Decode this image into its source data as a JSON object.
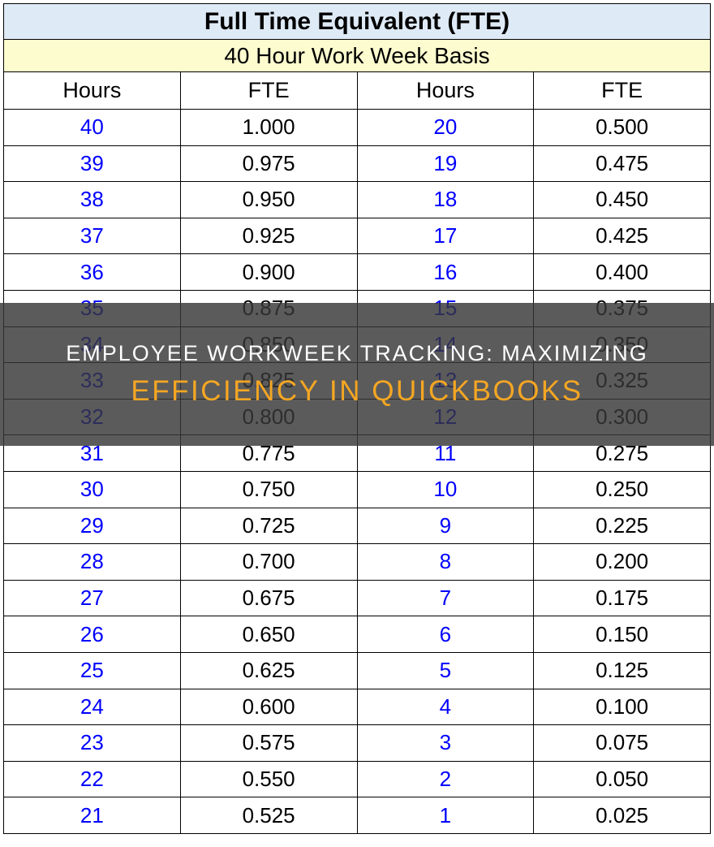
{
  "table": {
    "title": "Full Time Equivalent (FTE)",
    "subtitle": "40 Hour Work Week Basis",
    "columns": [
      "Hours",
      "FTE",
      "Hours",
      "FTE"
    ],
    "title_bg": "#deeaf6",
    "subtitle_bg": "#fdfccf",
    "hours_color": "#0000ff",
    "fte_color": "#000000",
    "border_color": "#000000",
    "rows": [
      [
        "40",
        "1.000",
        "20",
        "0.500"
      ],
      [
        "39",
        "0.975",
        "19",
        "0.475"
      ],
      [
        "38",
        "0.950",
        "18",
        "0.450"
      ],
      [
        "37",
        "0.925",
        "17",
        "0.425"
      ],
      [
        "36",
        "0.900",
        "16",
        "0.400"
      ],
      [
        "35",
        "0.875",
        "15",
        "0.375"
      ],
      [
        "34",
        "0.850",
        "14",
        "0.350"
      ],
      [
        "33",
        "0.825",
        "13",
        "0.325"
      ],
      [
        "32",
        "0.800",
        "12",
        "0.300"
      ],
      [
        "31",
        "0.775",
        "11",
        "0.275"
      ],
      [
        "30",
        "0.750",
        "10",
        "0.250"
      ],
      [
        "29",
        "0.725",
        "9",
        "0.225"
      ],
      [
        "28",
        "0.700",
        "8",
        "0.200"
      ],
      [
        "27",
        "0.675",
        "7",
        "0.175"
      ],
      [
        "26",
        "0.650",
        "6",
        "0.150"
      ],
      [
        "25",
        "0.625",
        "5",
        "0.125"
      ],
      [
        "24",
        "0.600",
        "4",
        "0.100"
      ],
      [
        "23",
        "0.575",
        "3",
        "0.075"
      ],
      [
        "22",
        "0.550",
        "2",
        "0.050"
      ],
      [
        "21",
        "0.525",
        "1",
        "0.025"
      ]
    ]
  },
  "overlay": {
    "line1": "EMPLOYEE WORKWEEK TRACKING: MAXIMIZING",
    "line2": "EFFICIENCY IN QUICKBOOKS",
    "line1_color": "#ffffff",
    "line2_color": "#f5a623",
    "background": "rgba(55,55,55,0.82)"
  }
}
